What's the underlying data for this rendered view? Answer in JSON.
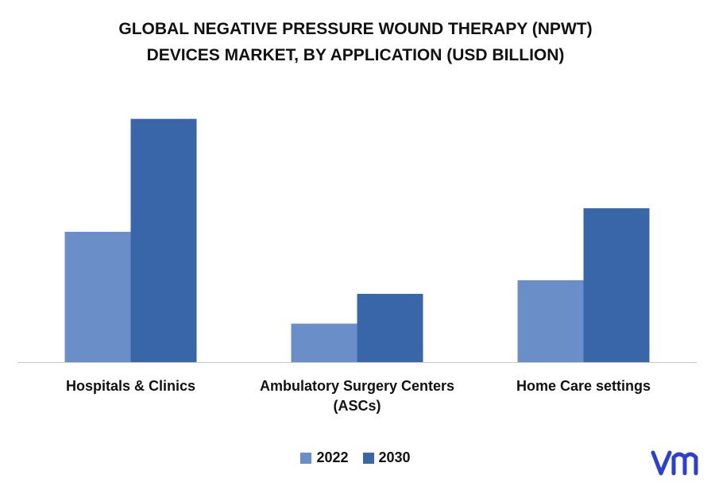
{
  "chart_data": {
    "type": "bar",
    "title_lines": [
      "GLOBAL NEGATIVE PRESSURE WOUND THERAPY (NPWT)",
      "DEVICES MARKET, BY APPLICATION (USD BILLION)"
    ],
    "categories": [
      [
        "Hospitals & Clinics"
      ],
      [
        "Ambulatory Surgery Centers",
        "(ASCs)"
      ],
      [
        "Home Care settings"
      ]
    ],
    "series": [
      {
        "name": "2022",
        "color": "#6a8fc8",
        "values": [
          1.05,
          0.31,
          0.66
        ]
      },
      {
        "name": "2030",
        "color": "#3866a8",
        "values": [
          1.96,
          0.55,
          1.24
        ]
      }
    ],
    "ylim": [
      0,
      2.2
    ],
    "grid": false,
    "legend_position": "bottom-center"
  },
  "logo": {
    "name": "vmr-logo",
    "color": "#2b3fd1"
  }
}
